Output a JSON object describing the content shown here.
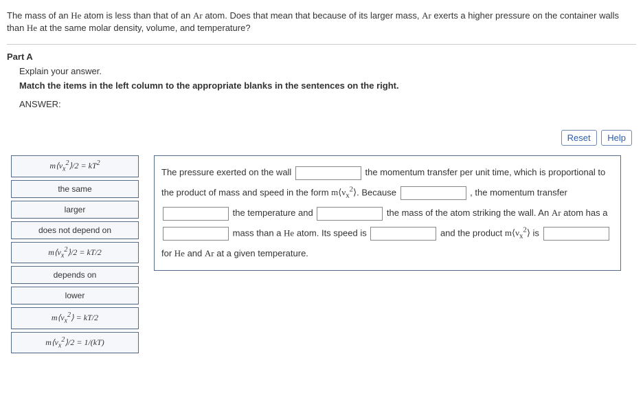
{
  "question": {
    "pre": "The mass of an ",
    "he": "He",
    "mid1": " atom is less than that of an ",
    "ar": "Ar",
    "mid2": " atom. Does that mean that because of its larger mass, ",
    "ar2": "Ar",
    "mid3": " exerts a higher pressure on the container walls than ",
    "he2": "He",
    "tail": " at the same molar density, volume, and temperature?"
  },
  "part_label": "Part A",
  "instr1": "Explain your answer.",
  "instr2": "Match the items in the left column to the appropriate blanks in the sentences on the right.",
  "answer_label": "ANSWER:",
  "buttons": {
    "reset": "Reset",
    "help": "Help"
  },
  "options": [
    {
      "html": "m⟨ν<sub>x</sub><sup>2</sup>⟩/2 = kT<sup>2</sup>",
      "is_eq": true
    },
    {
      "html": "the same",
      "is_eq": false
    },
    {
      "html": "larger",
      "is_eq": false
    },
    {
      "html": "does not depend on",
      "is_eq": false
    },
    {
      "html": "m⟨ν<sub>x</sub><sup>2</sup>⟩/2 = kT/2",
      "is_eq": true
    },
    {
      "html": "depends on",
      "is_eq": false
    },
    {
      "html": "lower",
      "is_eq": false
    },
    {
      "html": "m⟨ν<sub>x</sub><sup>2</sup>⟩ = kT/2",
      "is_eq": true
    },
    {
      "html": "m⟨ν<sub>x</sub><sup>2</sup>⟩/2 = 1/(kT)",
      "is_eq": true
    }
  ],
  "sentence": {
    "f0": "The pressure exerted on the wall ",
    "f1": " the momentum transfer per unit time, which is proportional to the product of mass and speed in the form ",
    "eq1": "m⟨ν<sub>x</sub><sup>2</sup>⟩",
    "f2": ". Because ",
    "f3": " , the momentum transfer ",
    "f4": " the temperature and ",
    "f5": " the mass of the atom striking the wall. An ",
    "ar": "Ar",
    "f6": " atom has a ",
    "f7": " mass than a ",
    "he": "He",
    "f8": " atom. Its speed is ",
    "f9": " and the product ",
    "eq2": "m⟨ν<sub>x</sub><sup>2</sup>⟩",
    "f10": " is ",
    "f11": " for ",
    "he2": "He",
    "f12": " and ",
    "ar2": "Ar",
    "f13": " at a given temperature."
  }
}
